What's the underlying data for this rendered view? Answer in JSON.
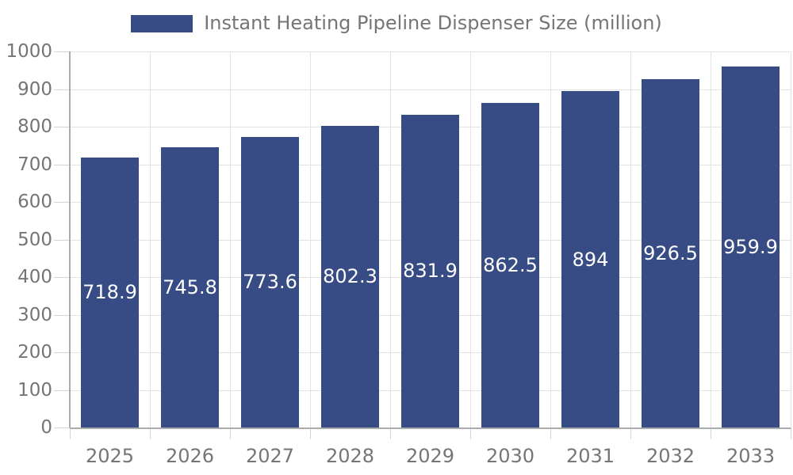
{
  "chart_data": {
    "type": "bar",
    "legend": "Instant Heating Pipeline Dispenser Size (million)",
    "categories": [
      "2025",
      "2026",
      "2027",
      "2028",
      "2029",
      "2030",
      "2031",
      "2032",
      "2033"
    ],
    "values": [
      718.9,
      745.8,
      773.6,
      802.3,
      831.9,
      862.5,
      894,
      926.5,
      959.9
    ],
    "value_labels": [
      "718.9",
      "745.8",
      "773.6",
      "802.3",
      "831.9",
      "862.5",
      "894",
      "926.5",
      "959.9"
    ],
    "xlabel": "",
    "ylabel": "",
    "ylim": [
      0,
      1000
    ],
    "y_tick_step": 100,
    "y_tick_labels": [
      "0",
      "100",
      "200",
      "300",
      "400",
      "500",
      "600",
      "700",
      "800",
      "900",
      "1000"
    ],
    "grid": true,
    "legend_position": "top",
    "colors": {
      "bar": "#374b84",
      "axis_text": "#757575",
      "gridline": "#e3e3e3",
      "axis_line": "#ababab",
      "tick": "#d4d4d4",
      "value_label_text": "#ffffff",
      "background": "#ffffff"
    }
  }
}
